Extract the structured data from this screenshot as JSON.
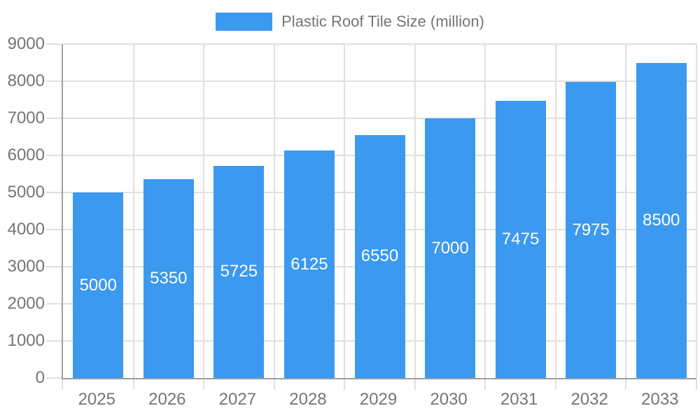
{
  "chart_data": {
    "type": "bar",
    "title": "",
    "categories": [
      "2025",
      "2026",
      "2027",
      "2028",
      "2029",
      "2030",
      "2031",
      "2032",
      "2033"
    ],
    "series": [
      {
        "name": "Plastic Roof Tile Size (million)",
        "values": [
          5000,
          5350,
          5725,
          6125,
          6550,
          7000,
          7475,
          7975,
          8500
        ]
      }
    ],
    "xlabel": "",
    "ylabel": "",
    "ylim": [
      0,
      9000
    ],
    "ytick_step": 1000,
    "ytick_labels": [
      "0",
      "1000",
      "2000",
      "3000",
      "4000",
      "5000",
      "6000",
      "7000",
      "8000",
      "9000"
    ],
    "grid": true,
    "value_labels_shown": true,
    "value_label_position": "inside-center",
    "legend_position": "top-center",
    "colors": {
      "bar": "#3B99F0",
      "value_label": "#FFFFFF",
      "axis_text": "#757575",
      "legend_text": "#757575",
      "grid_line": "#E0E0E0",
      "x_axis_line": "#9E9E9E",
      "y_axis_line": "#A0A0A0",
      "background": "#FFFFFF"
    }
  }
}
